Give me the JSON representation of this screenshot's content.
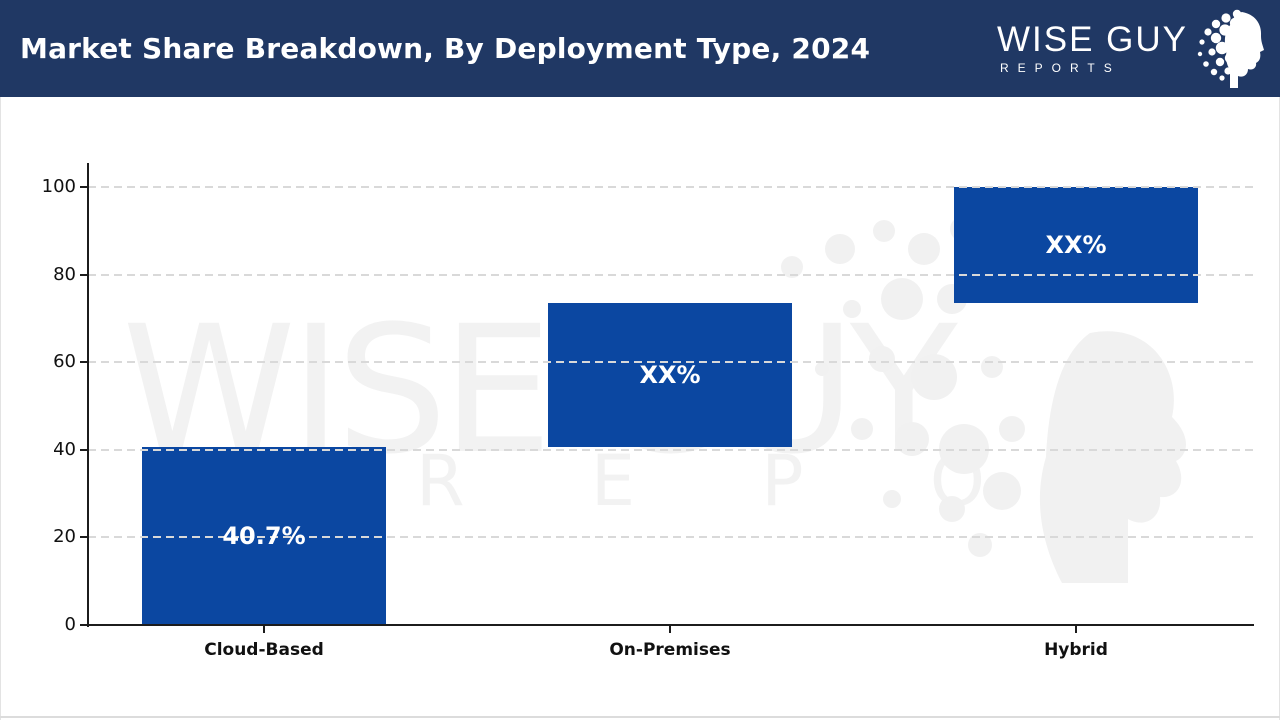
{
  "header": {
    "title": "Market Share Breakdown, By Deployment Type, 2024",
    "logo": {
      "line1": "WISE GUY",
      "line2": "REPORTS"
    }
  },
  "watermark": {
    "line1": "WISE GUY",
    "line2": "R E P O R T S"
  },
  "chart_data": {
    "type": "bar",
    "subtype": "waterfall-stacked-breakdown",
    "title": "Market Share Breakdown, By Deployment Type, 2024",
    "categories": [
      "Cloud-Based",
      "On-Premises",
      "Hybrid"
    ],
    "segments": [
      {
        "category": "Cloud-Based",
        "start": 0,
        "end": 40.7,
        "label": "40.7%"
      },
      {
        "category": "On-Premises",
        "start": 40.7,
        "end": 73.5,
        "label": "XX%"
      },
      {
        "category": "Hybrid",
        "start": 73.5,
        "end": 100,
        "label": "XX%"
      }
    ],
    "xlabel": "",
    "ylabel": "",
    "ylim": [
      0,
      105
    ],
    "yticks": [
      0,
      20,
      40,
      60,
      80,
      100
    ],
    "grid": "horizontal-dashed",
    "legend": "none",
    "bar_color": "#0b47a1",
    "bar_label_color": "#ffffff",
    "header_color": "#203864",
    "gridline_color": "#d9d9d9",
    "axis_color": "#1c1c1c"
  }
}
